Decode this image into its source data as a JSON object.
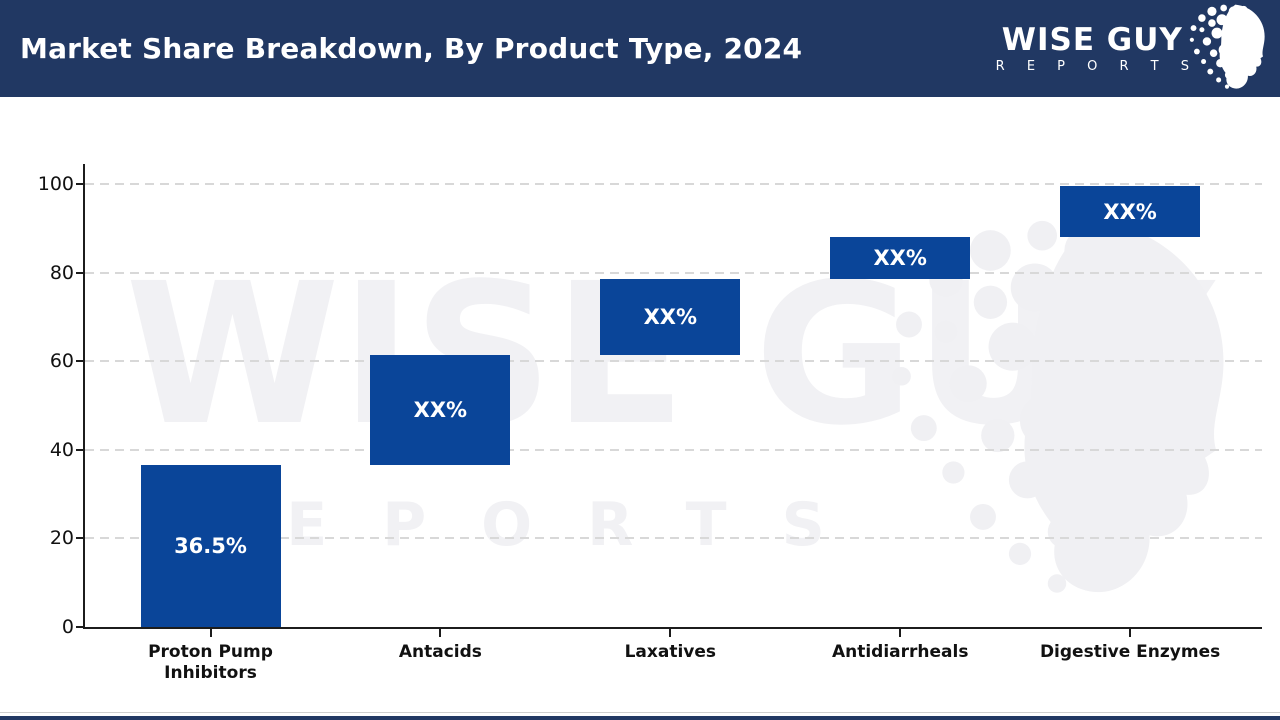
{
  "header": {
    "title": "Market Share Breakdown, By Product Type, 2024",
    "logo": {
      "line1": "WISE GUY",
      "line2": "R E P O R T S"
    }
  },
  "watermark": {
    "line1": "WISE GUY",
    "line2": "REPORTS"
  },
  "colors": {
    "header_bg": "#213863",
    "bar": "#0a4599",
    "grid": "#d8d8d8",
    "axis": "#1c1c1c",
    "bar_label": "#ffffff",
    "watermark": "#f1f1f4",
    "footer_strip": "#213863"
  },
  "chart_data": {
    "type": "bar",
    "subtype": "waterfall",
    "title": "Market Share Breakdown, By Product Type, 2024",
    "categories": [
      "Proton Pump\nInhibitors",
      "Antacids",
      "Laxatives",
      "Antidiarrheals",
      "Digestive Enzymes"
    ],
    "segments": [
      {
        "start": 0,
        "end": 36.5,
        "label": "36.5%"
      },
      {
        "start": 36.5,
        "end": 61.5,
        "label": "XX%"
      },
      {
        "start": 61.5,
        "end": 78.5,
        "label": "XX%"
      },
      {
        "start": 78.5,
        "end": 88.0,
        "label": "XX%"
      },
      {
        "start": 88.0,
        "end": 99.5,
        "label": "XX%"
      }
    ],
    "values": [
      36.5,
      25.0,
      17.0,
      9.5,
      11.5
    ],
    "bar_labels": [
      "36.5%",
      "XX%",
      "XX%",
      "XX%",
      "XX%"
    ],
    "xlabel": "",
    "ylabel": "",
    "yticks": [
      0,
      20,
      40,
      60,
      80,
      100
    ],
    "ylim": [
      0,
      104.5
    ],
    "grid": "horizontal-dashed",
    "legend": "none"
  }
}
